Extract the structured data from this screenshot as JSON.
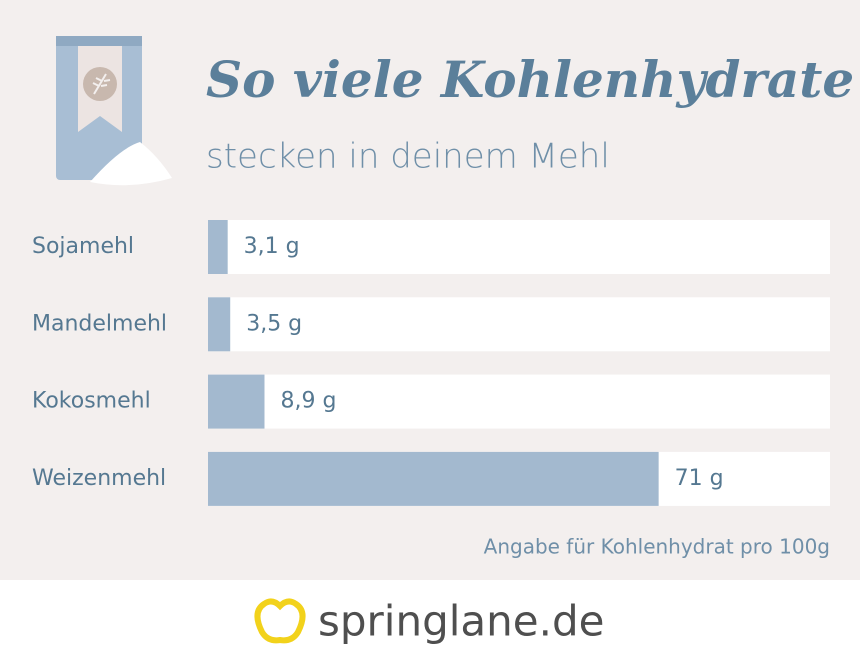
{
  "chart_data": {
    "type": "bar",
    "orientation": "horizontal",
    "title": "So viele Kohlenhydrate",
    "subtitle": "stecken in deinem Mehl",
    "categories": [
      "Sojamehl",
      "Mandelmehl",
      "Kokosmehl",
      "Weizenmehl"
    ],
    "values": [
      3.1,
      3.5,
      8.9,
      71
    ],
    "value_labels": [
      "3,1 g",
      "3,5 g",
      "8,9 g",
      "71 g"
    ],
    "color": "#a3b9cf",
    "track_color": "#ffffff",
    "xlim": [
      0,
      98
    ],
    "note": "Angabe für Kohlenhydrat pro 100g"
  },
  "brand": "springlane.de"
}
